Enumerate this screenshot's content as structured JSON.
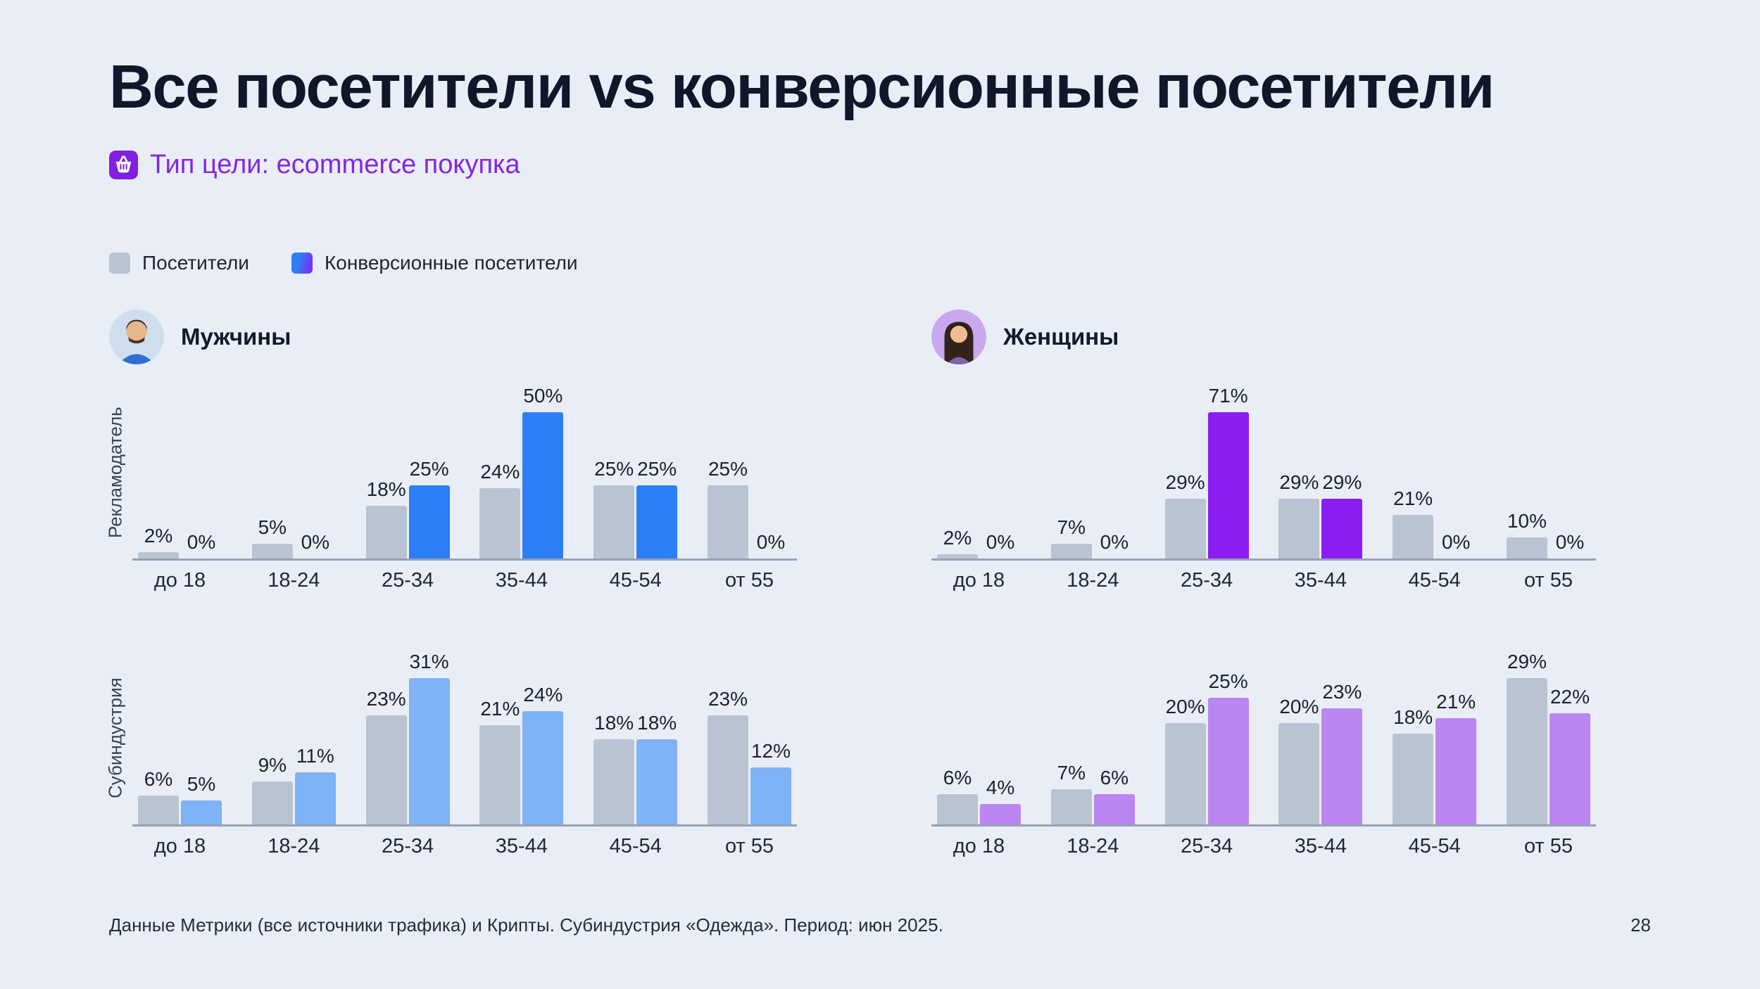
{
  "slide": {
    "title": "Все посетители vs конверсионные посетители",
    "goal_type": "Тип цели: ecommerce покупка",
    "footer": "Данные Метрики (все источники трафика) и Крипты. Субиндустрия «Одежда». Период: июн 2025.",
    "page_number": "28"
  },
  "legend": {
    "visitors_label": "Посетители",
    "conversion_label": "Конверсионные посетители"
  },
  "sections": {
    "men_title": "Мужчины",
    "women_title": "Женщины",
    "row1_label": "Рекламодатель",
    "row2_label": "Субиндустрия"
  },
  "colors": {
    "visitors": "#b9c3d2",
    "conversion_blue": "#2d7ef7",
    "conversion_purple": "#8b1df2",
    "men_advertiser": "#2d7ef7",
    "women_advertiser": "#8b1df2",
    "men_subindustry": "#7fb2f6",
    "women_subindustry": "#bb85f2",
    "accent_purple": "#8526e0",
    "background": "#e9eef6"
  },
  "chart_data": [
    {
      "type": "bar",
      "title": "Мужчины — Рекламодатель",
      "categories": [
        "до 18",
        "18-24",
        "25-34",
        "35-44",
        "45-54",
        "от 55"
      ],
      "series": [
        {
          "name": "Посетители",
          "values": [
            2,
            5,
            18,
            24,
            25,
            25
          ],
          "color": "#b9c3d2"
        },
        {
          "name": "Конверсионные посетители",
          "values": [
            0,
            0,
            25,
            50,
            25,
            0
          ],
          "color": "#2d7ef7"
        }
      ],
      "ylabel": "Рекламодатель",
      "ylim": [
        0,
        50
      ],
      "unit": "%",
      "grid": false,
      "legend_position": "top-left"
    },
    {
      "type": "bar",
      "title": "Женщины — Рекламодатель",
      "categories": [
        "до 18",
        "18-24",
        "25-34",
        "35-44",
        "45-54",
        "от 55"
      ],
      "series": [
        {
          "name": "Посетители",
          "values": [
            2,
            7,
            29,
            29,
            21,
            10
          ],
          "color": "#b9c3d2"
        },
        {
          "name": "Конверсионные посетители",
          "values": [
            0,
            0,
            71,
            29,
            0,
            0
          ],
          "color": "#8b1df2"
        }
      ],
      "ylabel": "Рекламодатель",
      "ylim": [
        0,
        71
      ],
      "unit": "%",
      "grid": false,
      "legend_position": "top-left"
    },
    {
      "type": "bar",
      "title": "Мужчины — Субиндустрия",
      "categories": [
        "до 18",
        "18-24",
        "25-34",
        "35-44",
        "45-54",
        "от 55"
      ],
      "series": [
        {
          "name": "Посетители",
          "values": [
            6,
            9,
            23,
            21,
            18,
            23
          ],
          "color": "#b9c3d2"
        },
        {
          "name": "Конверсионные посетители",
          "values": [
            5,
            11,
            31,
            24,
            18,
            12
          ],
          "color": "#7fb2f6"
        }
      ],
      "ylabel": "Субиндустрия",
      "ylim": [
        0,
        31
      ],
      "unit": "%",
      "grid": false,
      "legend_position": "top-left"
    },
    {
      "type": "bar",
      "title": "Женщины — Субиндустрия",
      "categories": [
        "до 18",
        "18-24",
        "25-34",
        "35-44",
        "45-54",
        "от 55"
      ],
      "series": [
        {
          "name": "Посетители",
          "values": [
            6,
            7,
            20,
            20,
            18,
            29
          ],
          "color": "#b9c3d2"
        },
        {
          "name": "Конверсионные посетители",
          "values": [
            4,
            6,
            25,
            23,
            21,
            22
          ],
          "color": "#bb85f2"
        }
      ],
      "ylabel": "Субиндустрия",
      "ylim": [
        0,
        29
      ],
      "unit": "%",
      "grid": false,
      "legend_position": "top-left"
    }
  ]
}
